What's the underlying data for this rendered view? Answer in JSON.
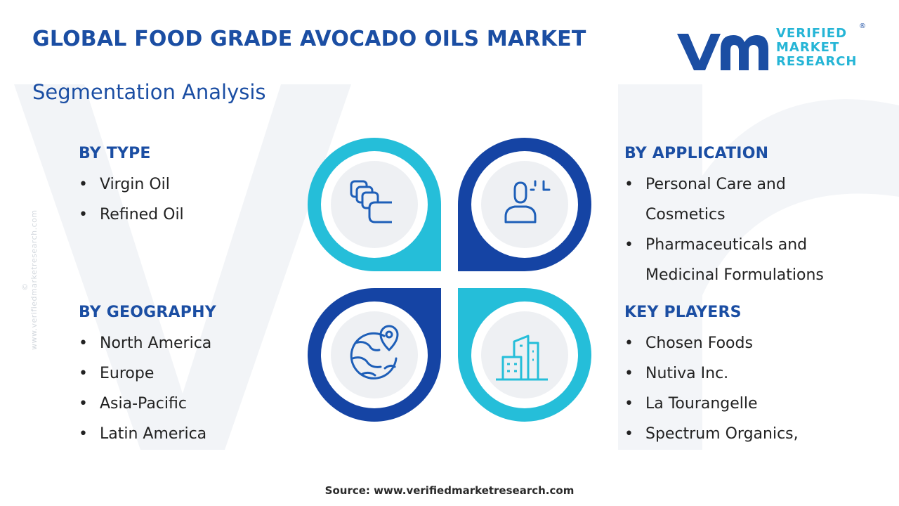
{
  "title": "GLOBAL FOOD GRADE AVOCADO OILS MARKET",
  "subtitle": "Segmentation Analysis",
  "logo": {
    "line1": "VERIFIED",
    "line2": "MARKET",
    "line3": "RESEARCH",
    "registered": "®"
  },
  "side_credit": "© www.verifiedmarketresearch.com",
  "colors": {
    "navy": "#1b4ea3",
    "cyan": "#25bed9",
    "dark_blue": "#1544a4",
    "icon": "#1e5fb8"
  },
  "segments": {
    "type": {
      "heading": "BY TYPE",
      "items": [
        "Virgin Oil",
        "Refined Oil"
      ]
    },
    "application": {
      "heading": "BY APPLICATION",
      "items": [
        "Personal Care and Cosmetics",
        "Pharmaceuticals and Medicinal Formulations"
      ]
    },
    "geography": {
      "heading": "BY GEOGRAPHY",
      "items": [
        "North America",
        "Europe",
        "Asia-Pacific",
        "Latin America"
      ]
    },
    "key_players": {
      "heading": "KEY PLAYERS",
      "items": [
        "Chosen Foods",
        "Nutiva Inc.",
        "La Tourangelle",
        "Spectrum Organics,"
      ]
    }
  },
  "icons": [
    "layers-icon",
    "user-analytics-icon",
    "globe-location-icon",
    "buildings-icon"
  ],
  "bullet": "•",
  "source": "Source: www.verifiedmarketresearch.com"
}
